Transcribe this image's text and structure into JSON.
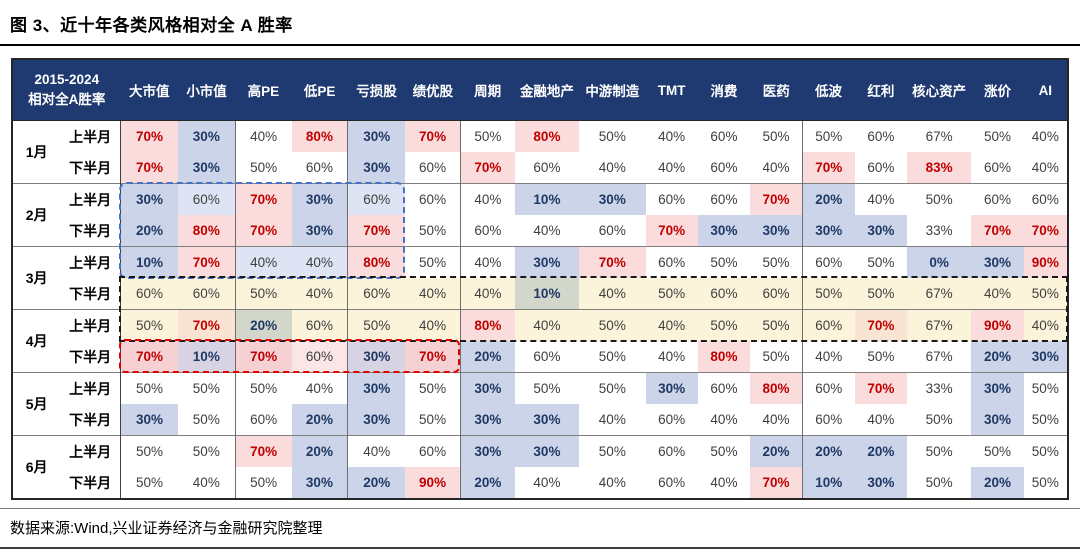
{
  "title": "图 3、近十年各类风格相对全 A 胜率",
  "footer": "数据来源:Wind,兴业证券经济与金融研究院整理",
  "colors": {
    "header_bg": "#1F3A70",
    "header_text": "#FFFFFF",
    "high_text": "#C00000",
    "low_text": "#1F3864",
    "normal_text": "#3F3F3F",
    "high_bg": "#FADCDC",
    "low_bg": "#CBD4E9",
    "low_wash_bg": "#DEE4F3",
    "cream_bg": "#FCF3DB",
    "blue_dashed_box": "#4472C4",
    "black_dashed_box": "#1A1A1A",
    "red_dashed_box": "#E00000"
  },
  "chart_data": {
    "type": "table",
    "corner": [
      "2015-2024",
      "相对全A胜率"
    ],
    "columns": [
      "大市值",
      "小市值",
      "高PE",
      "低PE",
      "亏损股",
      "绩优股",
      "周期",
      "金融地产",
      "中游制造",
      "TMT",
      "消费",
      "医药",
      "低波",
      "红利",
      "核心资产",
      "涨价",
      "AI"
    ],
    "group_separator_after_columns": [
      "小市值",
      "低PE",
      "绩优股",
      "医药"
    ],
    "rows": [
      {
        "month": "1月",
        "half": "上半月",
        "cells": [
          [
            "70%",
            "r",
            "p"
          ],
          [
            "30%",
            "b",
            "b"
          ],
          [
            "40%",
            "n",
            "w"
          ],
          [
            "80%",
            "r",
            "p"
          ],
          [
            "30%",
            "b",
            "b"
          ],
          [
            "70%",
            "r",
            "p"
          ],
          [
            "50%",
            "n",
            "w"
          ],
          [
            "80%",
            "r",
            "p"
          ],
          [
            "50%",
            "n",
            "w"
          ],
          [
            "40%",
            "n",
            "w"
          ],
          [
            "60%",
            "n",
            "w"
          ],
          [
            "50%",
            "n",
            "w"
          ],
          [
            "50%",
            "n",
            "w"
          ],
          [
            "60%",
            "n",
            "w"
          ],
          [
            "67%",
            "n",
            "w"
          ],
          [
            "50%",
            "n",
            "w"
          ],
          [
            "40%",
            "n",
            "w"
          ]
        ]
      },
      {
        "month": "1月",
        "half": "下半月",
        "cells": [
          [
            "70%",
            "r",
            "p"
          ],
          [
            "30%",
            "b",
            "b"
          ],
          [
            "50%",
            "n",
            "w"
          ],
          [
            "60%",
            "n",
            "w"
          ],
          [
            "30%",
            "b",
            "b"
          ],
          [
            "60%",
            "n",
            "w"
          ],
          [
            "70%",
            "r",
            "p"
          ],
          [
            "60%",
            "n",
            "w"
          ],
          [
            "40%",
            "n",
            "w"
          ],
          [
            "40%",
            "n",
            "w"
          ],
          [
            "60%",
            "n",
            "w"
          ],
          [
            "40%",
            "n",
            "w"
          ],
          [
            "70%",
            "r",
            "p"
          ],
          [
            "60%",
            "n",
            "w"
          ],
          [
            "83%",
            "r",
            "p"
          ],
          [
            "60%",
            "n",
            "w"
          ],
          [
            "40%",
            "n",
            "w"
          ]
        ]
      },
      {
        "month": "2月",
        "half": "上半月",
        "cells": [
          [
            "30%",
            "b",
            "b"
          ],
          [
            "60%",
            "n",
            "lb"
          ],
          [
            "70%",
            "r",
            "p"
          ],
          [
            "30%",
            "b",
            "b"
          ],
          [
            "60%",
            "n",
            "lb"
          ],
          [
            "60%",
            "n",
            "w"
          ],
          [
            "40%",
            "n",
            "w"
          ],
          [
            "10%",
            "b",
            "b"
          ],
          [
            "30%",
            "b",
            "b"
          ],
          [
            "60%",
            "n",
            "w"
          ],
          [
            "60%",
            "n",
            "w"
          ],
          [
            "70%",
            "r",
            "p"
          ],
          [
            "20%",
            "b",
            "b"
          ],
          [
            "40%",
            "n",
            "w"
          ],
          [
            "50%",
            "n",
            "w"
          ],
          [
            "60%",
            "n",
            "w"
          ],
          [
            "60%",
            "n",
            "w"
          ]
        ]
      },
      {
        "month": "2月",
        "half": "下半月",
        "cells": [
          [
            "20%",
            "b",
            "b"
          ],
          [
            "80%",
            "r",
            "p"
          ],
          [
            "70%",
            "r",
            "p"
          ],
          [
            "30%",
            "b",
            "b"
          ],
          [
            "70%",
            "r",
            "p"
          ],
          [
            "50%",
            "n",
            "w"
          ],
          [
            "60%",
            "n",
            "w"
          ],
          [
            "40%",
            "n",
            "w"
          ],
          [
            "60%",
            "n",
            "w"
          ],
          [
            "70%",
            "r",
            "p"
          ],
          [
            "30%",
            "b",
            "b"
          ],
          [
            "30%",
            "b",
            "b"
          ],
          [
            "30%",
            "b",
            "b"
          ],
          [
            "30%",
            "b",
            "b"
          ],
          [
            "33%",
            "n",
            "w"
          ],
          [
            "70%",
            "r",
            "p"
          ],
          [
            "70%",
            "r",
            "p"
          ]
        ]
      },
      {
        "month": "3月",
        "half": "上半月",
        "cells": [
          [
            "10%",
            "b",
            "b"
          ],
          [
            "70%",
            "r",
            "p"
          ],
          [
            "40%",
            "n",
            "lb"
          ],
          [
            "40%",
            "n",
            "lb"
          ],
          [
            "80%",
            "r",
            "p"
          ],
          [
            "50%",
            "n",
            "w"
          ],
          [
            "40%",
            "n",
            "w"
          ],
          [
            "30%",
            "b",
            "b"
          ],
          [
            "70%",
            "r",
            "p"
          ],
          [
            "60%",
            "n",
            "w"
          ],
          [
            "50%",
            "n",
            "w"
          ],
          [
            "50%",
            "n",
            "w"
          ],
          [
            "60%",
            "n",
            "w"
          ],
          [
            "50%",
            "n",
            "w"
          ],
          [
            "0%",
            "b",
            "b"
          ],
          [
            "30%",
            "b",
            "b"
          ],
          [
            "90%",
            "r",
            "p"
          ]
        ]
      },
      {
        "month": "3月",
        "half": "下半月",
        "cells": [
          [
            "60%",
            "n",
            "y"
          ],
          [
            "60%",
            "n",
            "y"
          ],
          [
            "50%",
            "n",
            "y"
          ],
          [
            "40%",
            "n",
            "y"
          ],
          [
            "60%",
            "n",
            "y"
          ],
          [
            "40%",
            "n",
            "y"
          ],
          [
            "40%",
            "n",
            "y"
          ],
          [
            "10%",
            "b",
            "yg"
          ],
          [
            "40%",
            "n",
            "y"
          ],
          [
            "50%",
            "n",
            "y"
          ],
          [
            "60%",
            "n",
            "y"
          ],
          [
            "60%",
            "n",
            "y"
          ],
          [
            "50%",
            "n",
            "y"
          ],
          [
            "50%",
            "n",
            "y"
          ],
          [
            "67%",
            "n",
            "y"
          ],
          [
            "40%",
            "n",
            "y"
          ],
          [
            "50%",
            "n",
            "y"
          ]
        ]
      },
      {
        "month": "4月",
        "half": "上半月",
        "cells": [
          [
            "50%",
            "n",
            "y"
          ],
          [
            "70%",
            "r",
            "yp"
          ],
          [
            "20%",
            "b",
            "yg"
          ],
          [
            "60%",
            "n",
            "y"
          ],
          [
            "50%",
            "n",
            "y"
          ],
          [
            "40%",
            "n",
            "y"
          ],
          [
            "80%",
            "r",
            "p"
          ],
          [
            "40%",
            "n",
            "y"
          ],
          [
            "50%",
            "n",
            "y"
          ],
          [
            "40%",
            "n",
            "y"
          ],
          [
            "50%",
            "n",
            "y"
          ],
          [
            "50%",
            "n",
            "y"
          ],
          [
            "60%",
            "n",
            "y"
          ],
          [
            "70%",
            "r",
            "yp"
          ],
          [
            "67%",
            "n",
            "y"
          ],
          [
            "90%",
            "r",
            "p"
          ],
          [
            "40%",
            "n",
            "y"
          ]
        ]
      },
      {
        "month": "4月",
        "half": "下半月",
        "cells": [
          [
            "70%",
            "r",
            "rp"
          ],
          [
            "10%",
            "b",
            "rl"
          ],
          [
            "70%",
            "r",
            "rp"
          ],
          [
            "60%",
            "n",
            "lp"
          ],
          [
            "30%",
            "b",
            "rl"
          ],
          [
            "70%",
            "r",
            "rp"
          ],
          [
            "20%",
            "b",
            "b"
          ],
          [
            "60%",
            "n",
            "w"
          ],
          [
            "50%",
            "n",
            "w"
          ],
          [
            "40%",
            "n",
            "w"
          ],
          [
            "80%",
            "r",
            "p"
          ],
          [
            "50%",
            "n",
            "w"
          ],
          [
            "40%",
            "n",
            "w"
          ],
          [
            "50%",
            "n",
            "w"
          ],
          [
            "67%",
            "n",
            "w"
          ],
          [
            "20%",
            "b",
            "b"
          ],
          [
            "30%",
            "b",
            "b"
          ]
        ]
      },
      {
        "month": "5月",
        "half": "上半月",
        "cells": [
          [
            "50%",
            "n",
            "w"
          ],
          [
            "50%",
            "n",
            "w"
          ],
          [
            "50%",
            "n",
            "w"
          ],
          [
            "40%",
            "n",
            "w"
          ],
          [
            "30%",
            "b",
            "b"
          ],
          [
            "50%",
            "n",
            "w"
          ],
          [
            "30%",
            "b",
            "b"
          ],
          [
            "50%",
            "n",
            "w"
          ],
          [
            "50%",
            "n",
            "w"
          ],
          [
            "30%",
            "b",
            "b"
          ],
          [
            "60%",
            "n",
            "w"
          ],
          [
            "80%",
            "r",
            "p"
          ],
          [
            "60%",
            "n",
            "w"
          ],
          [
            "70%",
            "r",
            "p"
          ],
          [
            "33%",
            "n",
            "w"
          ],
          [
            "30%",
            "b",
            "b"
          ],
          [
            "50%",
            "n",
            "w"
          ]
        ]
      },
      {
        "month": "5月",
        "half": "下半月",
        "cells": [
          [
            "30%",
            "b",
            "b"
          ],
          [
            "50%",
            "n",
            "w"
          ],
          [
            "60%",
            "n",
            "w"
          ],
          [
            "20%",
            "b",
            "b"
          ],
          [
            "30%",
            "b",
            "b"
          ],
          [
            "50%",
            "n",
            "w"
          ],
          [
            "30%",
            "b",
            "b"
          ],
          [
            "30%",
            "b",
            "b"
          ],
          [
            "40%",
            "n",
            "w"
          ],
          [
            "60%",
            "n",
            "w"
          ],
          [
            "40%",
            "n",
            "w"
          ],
          [
            "40%",
            "n",
            "w"
          ],
          [
            "60%",
            "n",
            "w"
          ],
          [
            "40%",
            "n",
            "w"
          ],
          [
            "50%",
            "n",
            "w"
          ],
          [
            "30%",
            "b",
            "b"
          ],
          [
            "50%",
            "n",
            "w"
          ]
        ]
      },
      {
        "month": "6月",
        "half": "上半月",
        "cells": [
          [
            "50%",
            "n",
            "w"
          ],
          [
            "50%",
            "n",
            "w"
          ],
          [
            "70%",
            "r",
            "p"
          ],
          [
            "20%",
            "b",
            "b"
          ],
          [
            "40%",
            "n",
            "w"
          ],
          [
            "60%",
            "n",
            "w"
          ],
          [
            "30%",
            "b",
            "b"
          ],
          [
            "30%",
            "b",
            "b"
          ],
          [
            "50%",
            "n",
            "w"
          ],
          [
            "60%",
            "n",
            "w"
          ],
          [
            "50%",
            "n",
            "w"
          ],
          [
            "20%",
            "b",
            "b"
          ],
          [
            "20%",
            "b",
            "b"
          ],
          [
            "20%",
            "b",
            "b"
          ],
          [
            "50%",
            "n",
            "w"
          ],
          [
            "50%",
            "n",
            "w"
          ],
          [
            "50%",
            "n",
            "w"
          ]
        ]
      },
      {
        "month": "6月",
        "half": "下半月",
        "cells": [
          [
            "50%",
            "n",
            "w"
          ],
          [
            "40%",
            "n",
            "w"
          ],
          [
            "50%",
            "n",
            "w"
          ],
          [
            "30%",
            "b",
            "b"
          ],
          [
            "20%",
            "b",
            "b"
          ],
          [
            "90%",
            "r",
            "p"
          ],
          [
            "20%",
            "b",
            "b"
          ],
          [
            "40%",
            "n",
            "w"
          ],
          [
            "40%",
            "n",
            "w"
          ],
          [
            "60%",
            "n",
            "w"
          ],
          [
            "40%",
            "n",
            "w"
          ],
          [
            "70%",
            "r",
            "p"
          ],
          [
            "10%",
            "b",
            "b"
          ],
          [
            "30%",
            "b",
            "b"
          ],
          [
            "50%",
            "n",
            "w"
          ],
          [
            "20%",
            "b",
            "b"
          ],
          [
            "50%",
            "n",
            "w"
          ]
        ]
      }
    ],
    "highlight_boxes": [
      {
        "name": "blue-dashed-box",
        "row_start": 2,
        "row_end": 4,
        "col_start": 0,
        "col_end": 4,
        "color": "#4472C4",
        "radius": 8
      },
      {
        "name": "black-dashed-box",
        "row_start": 5,
        "row_end": 6,
        "col_start": 0,
        "col_end": 16,
        "color": "#1A1A1A",
        "radius": 0
      },
      {
        "name": "red-dashed-box",
        "row_start": 7,
        "row_end": 7,
        "col_start": 0,
        "col_end": 5,
        "color": "#E00000",
        "radius": 6
      }
    ]
  }
}
